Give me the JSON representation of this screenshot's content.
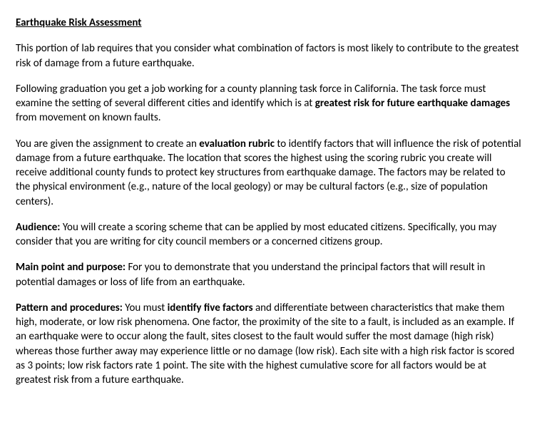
{
  "title": "Earthquake Risk Assessment",
  "p1": "This portion of lab requires that you consider what combination of factors is most likely to contribute to the greatest risk of damage from a future earthquake.",
  "p2a": "Following graduation you get a job working for a county planning task force in California. The task force must examine the setting of several different cities and identify which is at ",
  "p2b": "greatest risk for future earthquake damages",
  "p2c": " from movement on known faults.",
  "p3a": "You are given the assignment to create an ",
  "p3b": "evaluation rubric",
  "p3c": " to identify factors that will influence the risk of potential damage from a future earthquake. The location that scores the highest using the scoring rubric you create will receive additional county funds to protect key structures from earthquake damage. The factors may be related to the physical environment (e.g., nature of the local geology) or may be cultural factors (e.g., size of population centers).",
  "p4a": "Audience:",
  "p4b": " You will create a scoring scheme that can be applied by most educated citizens. Specifically, you may consider that you are writing for city council members or a concerned citizens group.",
  "p5a": "Main point and purpose:",
  "p5b": " For you to demonstrate that you understand the principal factors that will result in potential damages or loss of life from an earthquake.",
  "p6a": "Pattern and procedures:",
  "p6b": " You must ",
  "p6c": "identify five factors",
  "p6d": " and differentiate between characteristics that make them high, moderate, or low risk phenomena. One factor, the proximity of the site to a fault, is included as an example. If an earthquake were to occur along the fault, sites closest to the fault would suffer the most damage (high risk) whereas those further away may experience little or no damage (low risk). Each site with a high risk factor is scored as 3 points; low risk factors rate 1 point. The site with the highest cumulative score for all factors would be at greatest risk from a future earthquake."
}
